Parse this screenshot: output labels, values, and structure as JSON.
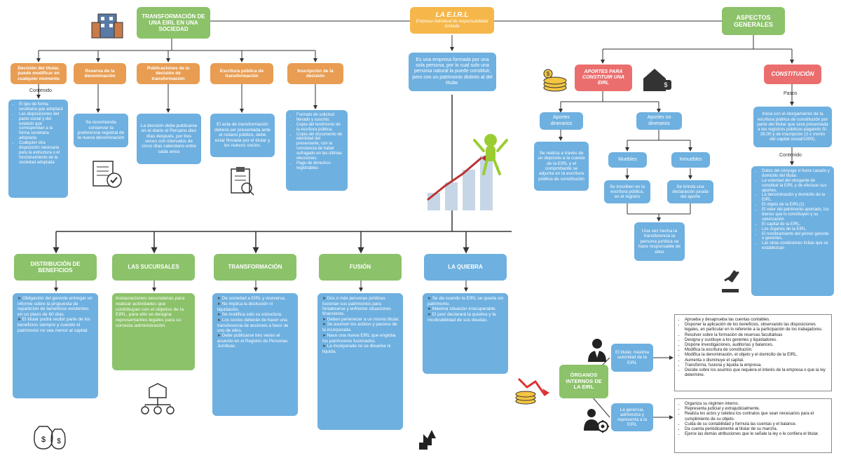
{
  "colors": {
    "green": "#8cc26a",
    "orange": "#f5b74a",
    "red": "#eb6e6e",
    "blue": "#6eb0e0",
    "softorange": "#e89d52",
    "line": "#333333",
    "bg": "#ffffff"
  },
  "root": {
    "title": "LA E.I.R.L",
    "subtitle": "Empresa individual de responsabilidad limitada",
    "definition": "Es una empresa formada por una sola persona, por lo cual solo una persona natural la puede constituir, pero con un patrimonio distinto al del titular."
  },
  "transform": {
    "title": "TRANSFORMACIÓN DE UNA EIRL EN UNA SOCIEDAD",
    "children": {
      "decision": {
        "title": "Decisión del titular, puede modificar en cualquier momento",
        "label": "Contenido",
        "items": [
          "El tipo de forma societaria que adoptará",
          "Las disposiciones del pacto social y del estatuto que correspondan a la forma societaria adoptada",
          "Cualquier otra disposición necesaria para la estructura o el funcionamiento de la sociedad adoptada"
        ]
      },
      "reserva": {
        "title": "Reserva de la denominación",
        "detail": "Se recomienda conservar la preferencia registral de la nueva denominación"
      },
      "publicaciones": {
        "title": "Publicaciones de la decisión de transformación",
        "detail": "La decisión debe publicarse en el diario el Peruano diez días después, por tres veces con intervalos de cinco días calendario entre cada aviso"
      },
      "escritura": {
        "title": "Escritura pública de transformación",
        "detail": "El acta de transformación deberá ser presentada ante el notario público, debe estar firmada por el titular y los nuevos socios."
      },
      "inscripcion": {
        "title": "Inscripción de la decisión",
        "items": [
          "Formato de solicitud llenado y suscrito.",
          "Copia del testimonio de la escritura pública.",
          "Copia del documento de identidad del presentante, con la constancia de haber sufragado en las últimas elecciones.",
          "Pago de derechos registrables"
        ]
      }
    }
  },
  "aspects": {
    "title": "ASPECTOS GENERALES",
    "aportes": {
      "title": "APORTES PARA CONSTITUIR UNA EIRL",
      "dinerarios": {
        "title": "Aportes dinerarios",
        "detail": "Se realiza a través de un depósito a la cuenta de la EIRL y el comprobante se adjunta en la escritura pública de constitución"
      },
      "nodinerarios": {
        "title": "Aportes no dinerarios",
        "muebles": {
          "title": "Muebles",
          "detail": "Se inscriben en la escritura pública, en el registro"
        },
        "inmuebles": {
          "title": "Inmuebles",
          "detail": "Se brinda una declaración jurada del aporte"
        },
        "final": "Una vez hecha la transferencia la persona jurídica se hace responsable de ellos"
      }
    },
    "constitucion": {
      "title": "CONSTITUCIÓN",
      "pasos_label": "Pasos",
      "pasos": "Inicia con el otorgamiento de la escritura pública de constitución por parte del titular que será presentada a los registros públicos pagando S/. 39.00 y de inscripción (3 x monto del capital social/1000).",
      "contenido_label": "Contenido",
      "items": [
        "Datos del cónyuge si fuera casado y domicilio del titular.",
        "La voluntad del otorgante de constituir la EIRL y de efectuar sus aportes.",
        "La denominación y domicilio de la EIRL.",
        "El objeto de la EIRL(2).",
        "El valor del patrimonio aportado, los bienes que lo constituyen y su valorización",
        "El capital de la EIRL.",
        "Los órganos de la EIRL.",
        "El nombramiento del primer gerente o gerentes.",
        "Las otras condiciones lícitas que se establezcan"
      ]
    }
  },
  "bottom": {
    "distribucion": {
      "title": "DISTRIBUCIÓN DE BENEFICIOS",
      "items": [
        "Obligación del gerente entregar un informe sobre la propuesta de repartición de beneficios existentes en un plazo de 60 días.",
        "El titular podrá recibir parte de los beneficios siempre y cuando el patrimonio no sea menor al capital."
      ]
    },
    "sucursales": {
      "title": "LAS SUCURSALES",
      "detail": "Instauraciones secundarias para realizar actividades que contribuyan con el objetivo de la EIRL, para ello se designa representantes legales para su correcta administración."
    },
    "transformacion": {
      "title": "TRANSFORMACIÓN",
      "items": [
        "De sociedad a EIRL y viceversa.",
        "No implica la disolución ni liquidación.",
        "Se modifica solo su estructura.",
        "Los socios deberán de hacer una transferencia de acciones a favor de uno de ellos.",
        "Debe publicarse tres veces el acuerdo en el Registro de Personas Jurídicas."
      ]
    },
    "fusion": {
      "title": "FUSIÓN",
      "items": [
        "Dos o más personas jurídicas fusionan sus patrimonios para fortalecerse y enfrentar situaciones financieras.",
        "Deben pertenecer a un mismo titular.",
        "Se asumen los activos y pasivos de la incorporada.",
        "Nace una nueva EIRL que engloba los patrimonios fusionados.",
        "La incorporada no se disuelve ni liquida."
      ]
    },
    "quiebra": {
      "title": "LA QUIEBRA",
      "items": [
        "Se da cuando la EIRL se queda sin patrimonio.",
        "Máxima situación irrecuperable.",
        "El juez declarará la quiebra y la incobrabilidad de sus deudas."
      ]
    }
  },
  "organos": {
    "title": "ÓRGANOS INTERNOS DE LA EIRL",
    "titular": {
      "title": "El titular, máxima autoridad de la EIRL",
      "items": [
        "Aprueba y desaprueba las cuentas contables.",
        "Disponer la aplicación de los beneficios, observando las disposiciones legales, en particular en lo referente a la participación de los trabajadores.",
        "Resolver sobre la formación de reservas facultativas",
        "Designa y sustituye a los gerentes y liquidadores.",
        "Dispone investigaciones, auditorías y balances.",
        "Modifica la escritura de constitución.",
        "Modifica la denominación, el objeto y el domicilio de la EIRL.",
        "Aumenta o disminuye el capital.",
        "Transforma, fusiona y liquida la empresa.",
        "Decide sobre los asuntos que requiera el interés de la empresa o que la ley determine."
      ]
    },
    "gerencia": {
      "title": "La gerencia, administra y representa a la EIRL",
      "items": [
        "Organiza su régimen interno.",
        "Representa judicial y extrajudicialmente.",
        "Realiza los actos y celebra los contratos que sean necesarios para el cumplimiento de su objeto.",
        "Cuida de su contabilidad y formula las cuentas y el balance.",
        "Da cuenta periódicamente al titular de su marcha.",
        "Ejerce las demás atribuciones que le señale la ley o le confiera el titular."
      ]
    }
  }
}
